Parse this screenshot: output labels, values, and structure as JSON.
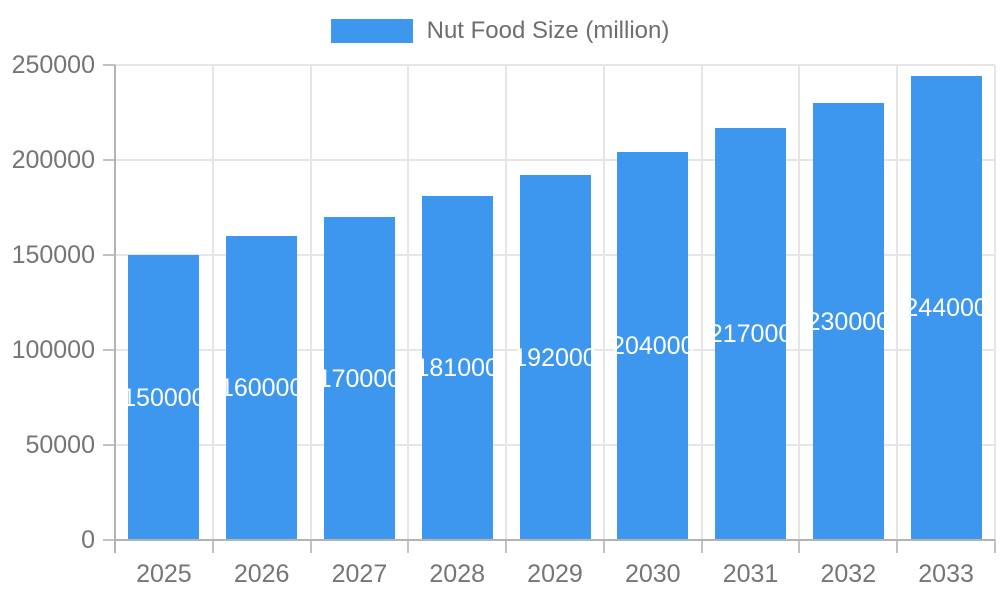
{
  "chart_data": {
    "type": "bar",
    "title": "Nut Food Size (million)",
    "categories": [
      "2025",
      "2026",
      "2027",
      "2028",
      "2029",
      "2030",
      "2031",
      "2032",
      "2033"
    ],
    "values": [
      150000,
      160000,
      170000,
      181000,
      192000,
      204000,
      217000,
      230000,
      244000
    ],
    "value_labels": [
      "150000",
      "160000",
      "170000",
      "181000",
      "192000",
      "204000",
      "217000",
      "230000",
      "244000"
    ],
    "xlabel": "",
    "ylabel": "",
    "ylim": [
      0,
      250000
    ],
    "yticks": [
      0,
      50000,
      100000,
      150000,
      200000,
      250000
    ],
    "ytick_labels": [
      "0",
      "50000",
      "100000",
      "150000",
      "200000",
      "250000"
    ],
    "grid": true,
    "legend_position": "top-center",
    "legend_entries": [
      "Nut Food Size (million)"
    ],
    "colors": {
      "bar": "#3e97ee",
      "value_label": "#ffffff",
      "axis_label": "#757575",
      "legend_text": "#6e6e6e",
      "gridline": "#e6e6e6",
      "axis_line": "#b3b3b3",
      "background": "#ffffff"
    }
  }
}
